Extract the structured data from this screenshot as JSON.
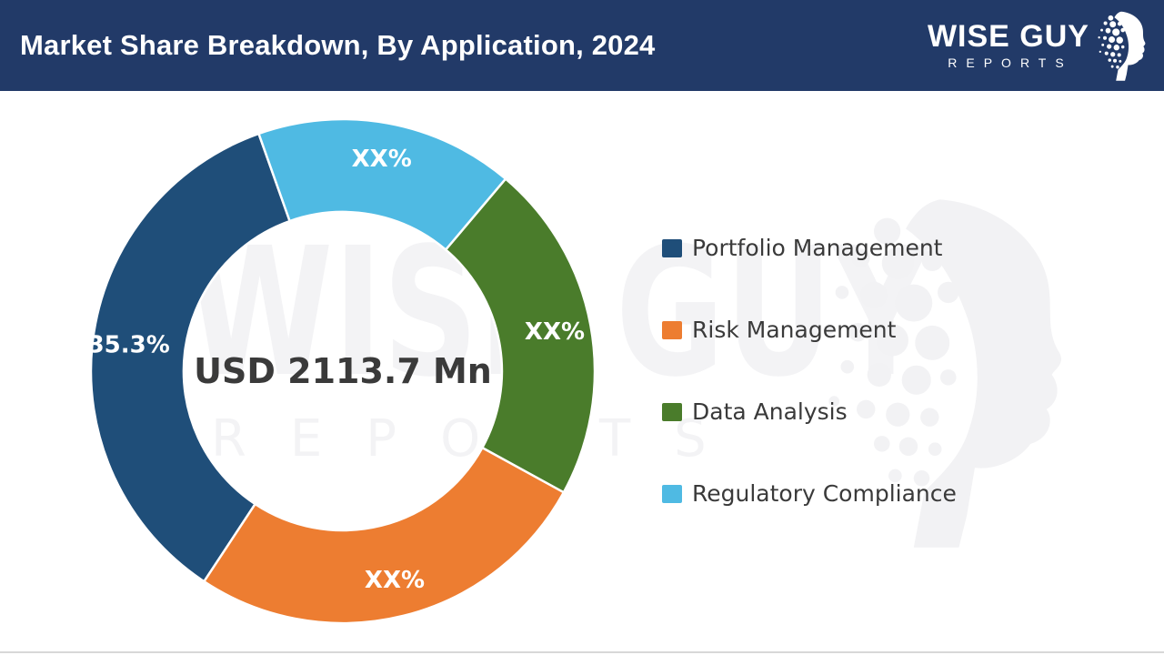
{
  "header": {
    "title": "Market Share Breakdown, By Application, 2024",
    "logo": {
      "line1": "WISE GUY",
      "line2": "REPORTS"
    }
  },
  "chart_data": {
    "type": "pie",
    "subtype": "donut",
    "title": "Market Share Breakdown, By Application, 2024",
    "center_label": "USD 2113.7 Mn",
    "start_angle_deg": 109.5,
    "direction": "counterclockwise",
    "inner_radius_ratio": 0.63,
    "legend_position": "right",
    "segments": [
      {
        "label": "Portfolio Management",
        "display_value": "35.3%",
        "value_pct": 35.3,
        "color": "#1f4e79"
      },
      {
        "label": "Risk Management",
        "display_value": "XX%",
        "value_pct": 26.3,
        "color": "#ed7d31"
      },
      {
        "label": "Data Analysis",
        "display_value": "XX%",
        "value_pct": 21.8,
        "color": "#4a7c2b"
      },
      {
        "label": "Regulatory Compliance",
        "display_value": "XX%",
        "value_pct": 16.6,
        "color": "#4fbae3"
      }
    ]
  },
  "watermark": {
    "line1": "WISE GUY",
    "line2": "REPORTS"
  },
  "colors": {
    "header_bg": "#223a68",
    "center_text": "#3a3a3a",
    "legend_text": "#3a3a3a",
    "slice_separator": "#ffffff",
    "watermark": "#f3f3f5",
    "bottom_divider": "#d8d8d8"
  }
}
